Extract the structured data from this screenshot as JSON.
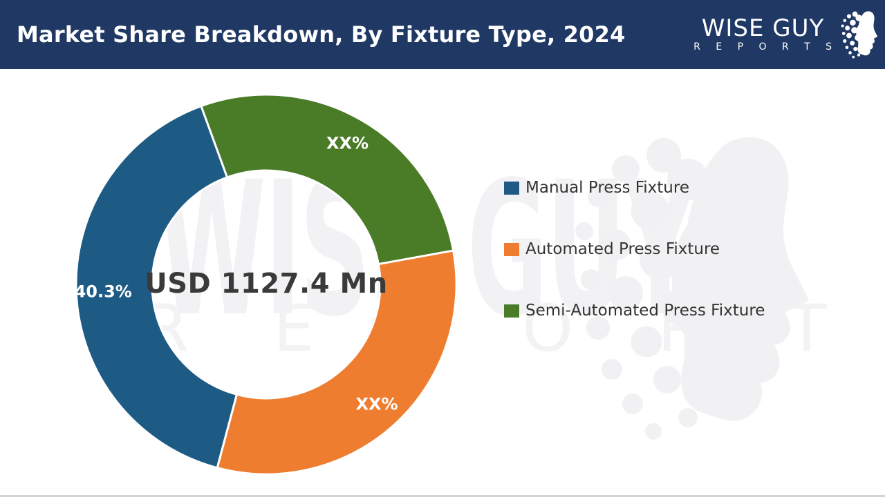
{
  "header": {
    "title": "Market Share Breakdown, By Fixture Type, 2024",
    "background_color": "#1F3864",
    "logo": {
      "line1": "WISE GUY",
      "line2": "R E P O R T S"
    }
  },
  "chart_data": {
    "type": "pie",
    "subtype": "donut",
    "center_label": "USD 1127.4 Mn",
    "start_angle_deg": 110,
    "direction": "counterclockwise",
    "inner_radius_ratio": 0.6,
    "legend_position": "right",
    "series": [
      {
        "name": "Manual Press Fixture",
        "value": 40.3,
        "display_label": "40.3%",
        "color": "#1E5B84"
      },
      {
        "name": "Automated Press Fixture",
        "value": 32.0,
        "display_label": "XX%",
        "color": "#EE7D30"
      },
      {
        "name": "Semi-Automated Press Fixture",
        "value": 27.7,
        "display_label": "XX%",
        "color": "#4A7B27"
      }
    ]
  },
  "watermark": {
    "line1": "WISE GUY",
    "line2": "R E P O R T S"
  },
  "colors": {
    "slice_label": "#FFFFFF",
    "center_label": "#3A3A3A",
    "legend_text": "#333333",
    "watermark": "#F2F2F4",
    "bottom_strip": "#D4D4D4"
  }
}
